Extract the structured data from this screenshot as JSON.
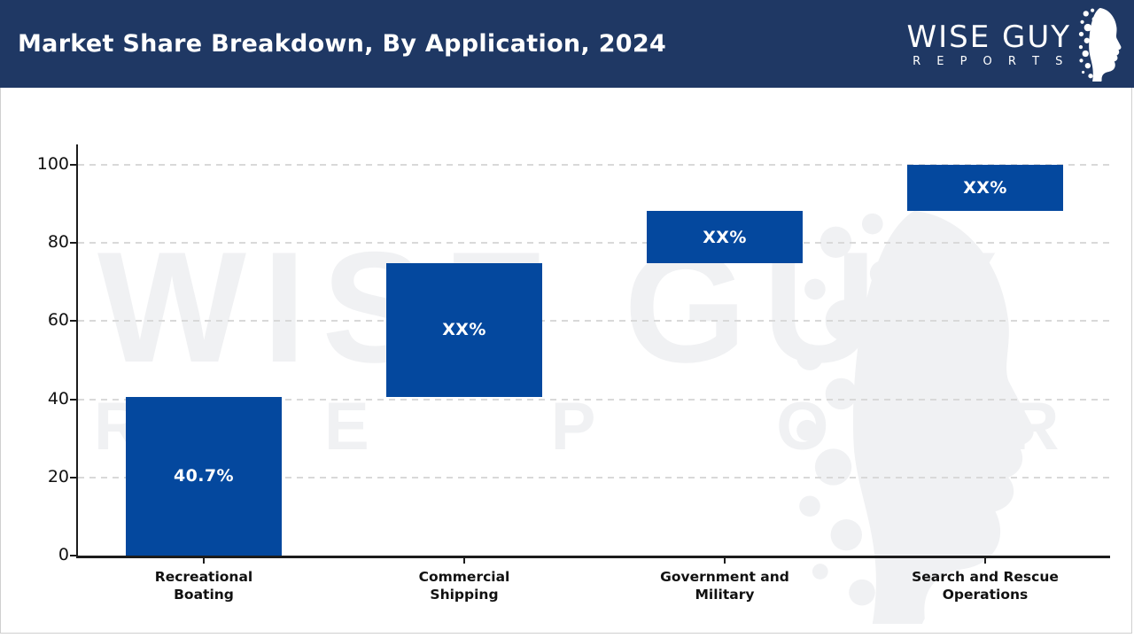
{
  "header": {
    "title": "Market Share Breakdown, By Application, 2024",
    "logo": {
      "name": "WISE GUY",
      "subtitle": "R E P O R T S"
    }
  },
  "watermark": {
    "line1": "WISE GUY",
    "line2": "R E P O R T S"
  },
  "colors": {
    "navy": "#1f3864",
    "bar": "#04489e",
    "grid": "#d9d9d9",
    "wm": "#f0f1f3",
    "ink": "#111111",
    "spine": "#1c1c1c",
    "border": "#cfcfcf"
  },
  "chart_data": {
    "type": "bar",
    "subtype": "waterfall",
    "title": "Market Share Breakdown, By Application, 2024",
    "categories": [
      "Recreational Boating",
      "Commercial Shipping",
      "Government and Military",
      "Search and Rescue Operations"
    ],
    "category_lines": [
      [
        "Recreational",
        "Boating"
      ],
      [
        "Commercial",
        "Shipping"
      ],
      [
        "Government and",
        "Military"
      ],
      [
        "Search and Rescue",
        "Operations"
      ]
    ],
    "segments": [
      {
        "start": 0,
        "end": 40.7,
        "value": 40.7,
        "label": "40.7%"
      },
      {
        "start": 40.7,
        "end": 74.8,
        "value": 34.1,
        "label": "XX%"
      },
      {
        "start": 74.8,
        "end": 88.2,
        "value": 13.4,
        "label": "XX%"
      },
      {
        "start": 88.2,
        "end": 100,
        "value": 11.8,
        "label": "XX%"
      }
    ],
    "yticks": [
      0,
      20,
      40,
      60,
      80,
      100
    ],
    "ylim": [
      0,
      105
    ],
    "xlabel": "",
    "ylabel": "",
    "grid": "horizontal-dashed",
    "legend": "none",
    "bar_color": "#04489e",
    "value_label_color": "#ffffff"
  }
}
